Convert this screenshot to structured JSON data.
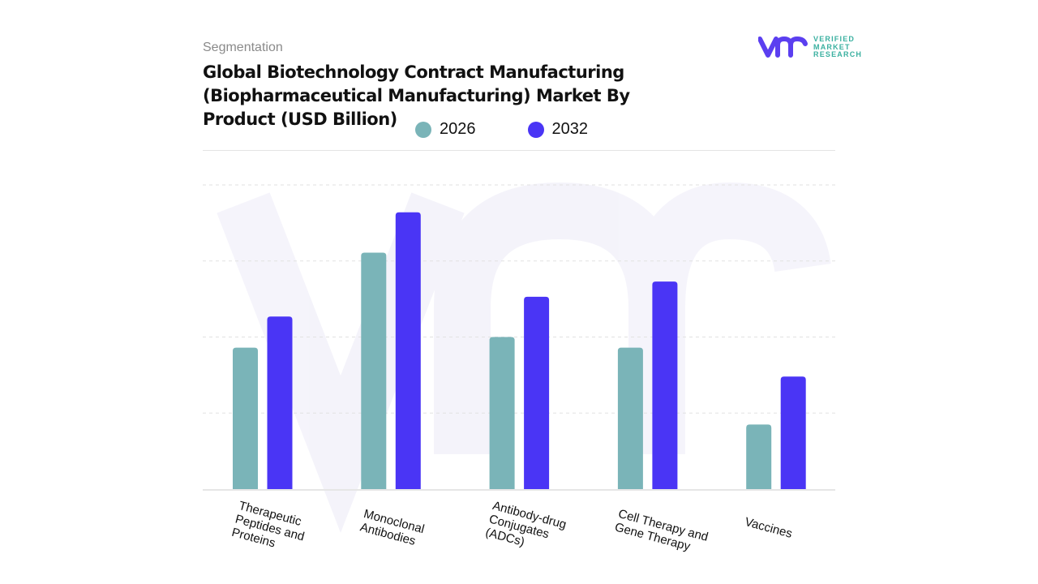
{
  "header": {
    "segment_label": "Segmentation",
    "title": "Global Biotechnology Contract Manufacturing (Biopharmaceutical Manufacturing) Market By Product (USD Billion)"
  },
  "logo": {
    "text_lines": [
      "VERIFIED",
      "MARKET",
      "RESEARCH"
    ],
    "registered": "®"
  },
  "colors": {
    "2026": "#7ab4b8",
    "2032": "#4a35f5",
    "logo_mark": "#5b3ff0",
    "logo_text": "#3ab0a0"
  },
  "chart_data": {
    "type": "bar",
    "title": "Global Biotechnology Contract Manufacturing (Biopharmaceutical Manufacturing) Market By Product (USD Billion)",
    "categories": [
      "Therapeutic Peptides and Proteins",
      "Monoclonal Antibodies",
      "Antibody-drug Conjugates (ADCs)",
      "Cell Therapy and Gene Therapy",
      "Vaccines"
    ],
    "series": [
      {
        "name": "2026",
        "values": [
          1.86,
          3.11,
          2.0,
          1.86,
          0.85
        ]
      },
      {
        "name": "2032",
        "values": [
          2.27,
          3.64,
          2.53,
          2.73,
          1.48
        ]
      }
    ],
    "ylim": [
      0,
      4
    ],
    "grid": true,
    "y_tick_labels_shown": false,
    "legend_position": "top"
  }
}
